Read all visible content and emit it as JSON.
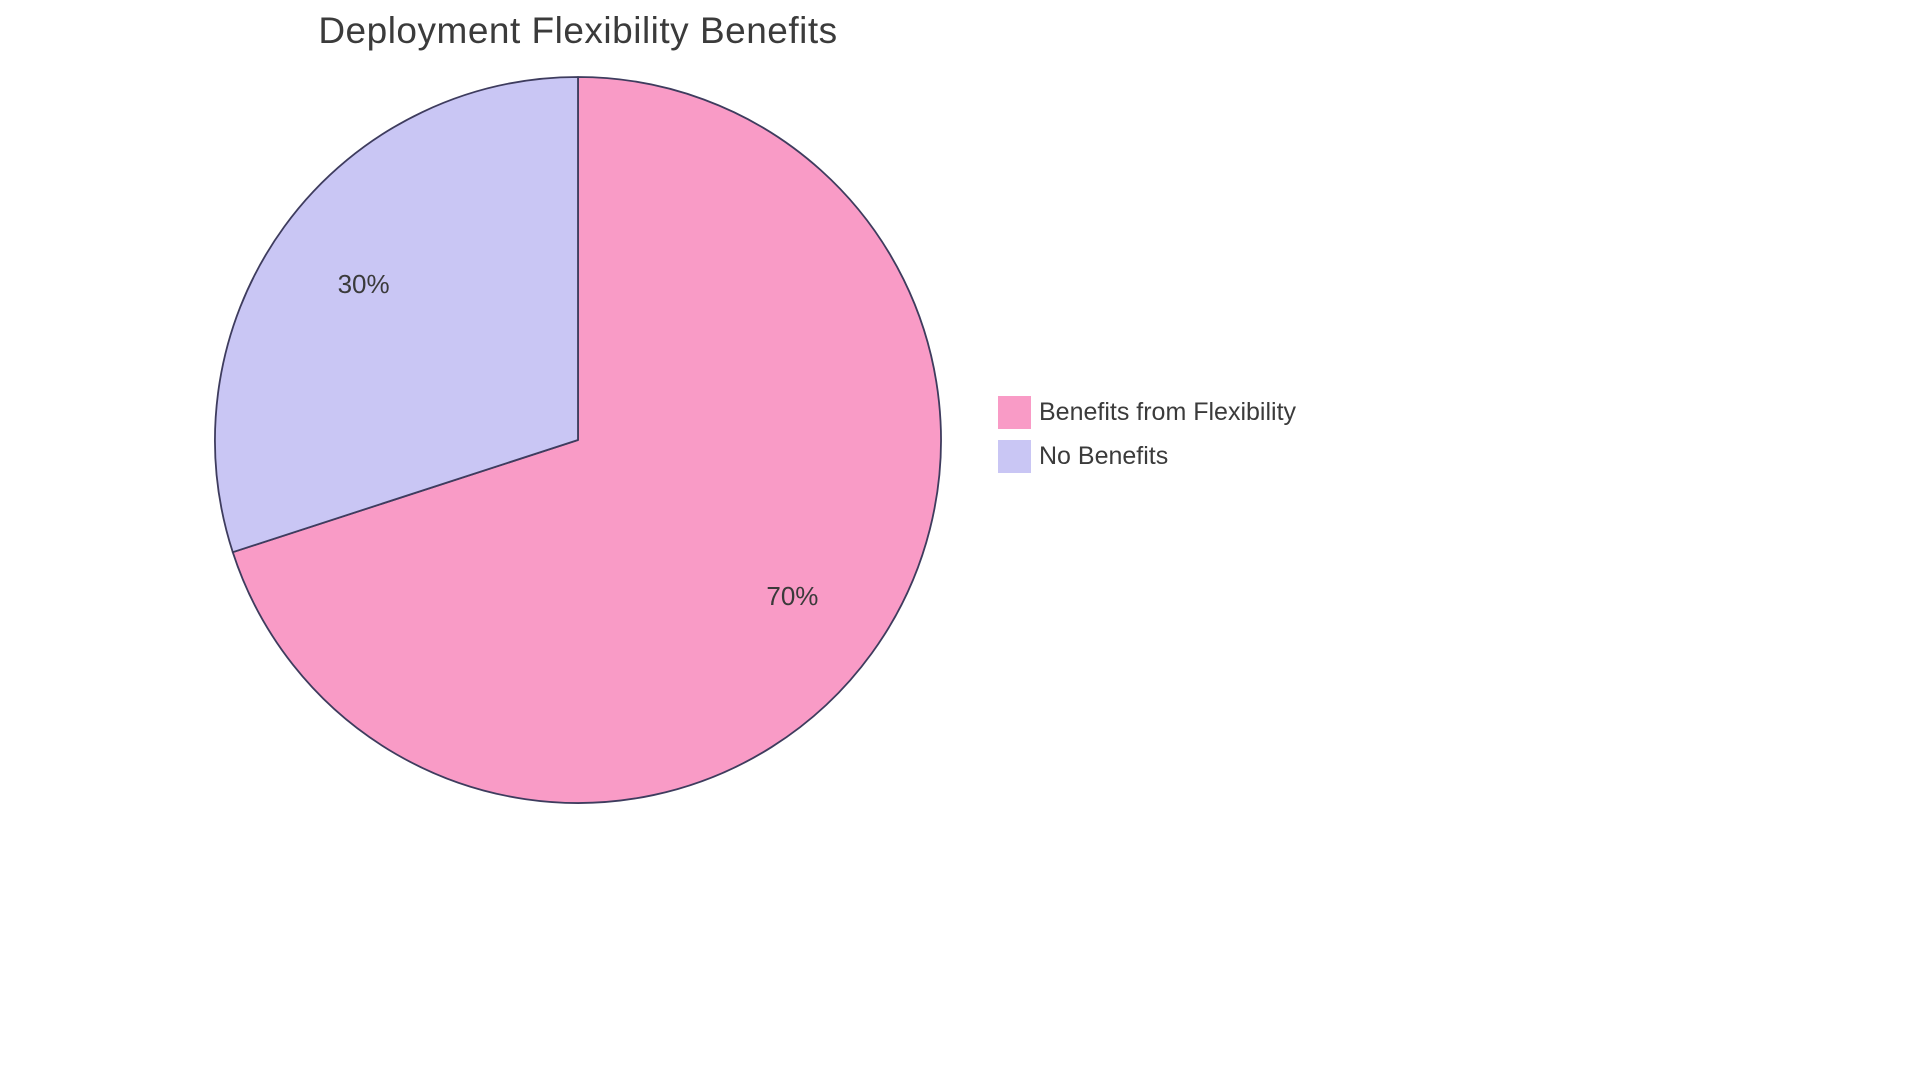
{
  "chart_data": {
    "type": "pie",
    "title": "Deployment Flexibility Benefits",
    "slices": [
      {
        "label": "Benefits from Flexibility",
        "value": 70,
        "text": "70%",
        "color": "#F99BC6"
      },
      {
        "label": "No Benefits",
        "value": 30,
        "text": "30%",
        "color": "#C9C6F4"
      }
    ],
    "start_angle_deg": -90,
    "direction": "clockwise",
    "legend_position": "right",
    "stroke_color": "#3E3C5E",
    "label_color": "#3a3a3a",
    "background": "#ffffff"
  }
}
